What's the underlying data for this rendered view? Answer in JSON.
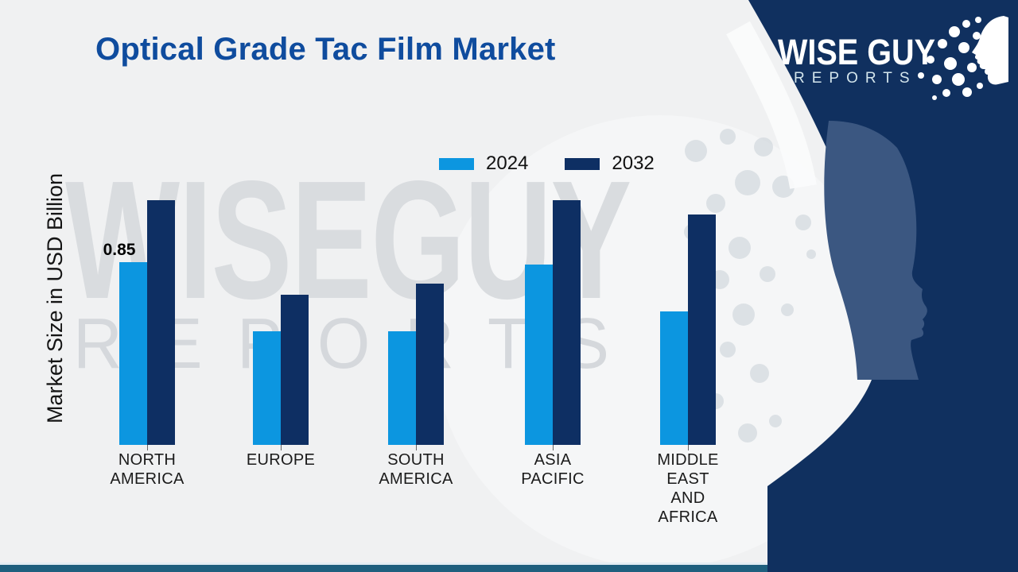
{
  "header": {
    "title": "Optical Grade Tac Film Market"
  },
  "logo": {
    "line1": "WISE GUY",
    "line2": "REPORTS"
  },
  "watermark": {
    "line1": "WISEGUY",
    "line2": "REPORTS"
  },
  "chart_data": {
    "type": "bar",
    "title": "Optical Grade Tac Film Market",
    "xlabel": "",
    "ylabel": "Market Size in USD Billion",
    "legend_position": "top",
    "grid": false,
    "ylim": [
      0,
      1.25
    ],
    "categories": [
      "NORTH AMERICA",
      "EUROPE",
      "SOUTH AMERICA",
      "ASIA PACIFIC",
      "MIDDLE EAST AND AFRICA"
    ],
    "category_lines": [
      [
        "NORTH",
        "AMERICA"
      ],
      [
        "EUROPE"
      ],
      [
        "SOUTH",
        "AMERICA"
      ],
      [
        "ASIA",
        "PACIFIC"
      ],
      [
        "MIDDLE",
        "EAST",
        "AND",
        "AFRICA"
      ]
    ],
    "series": [
      {
        "name": "2024",
        "color": "#0c96e0",
        "values": [
          0.85,
          0.53,
          0.53,
          0.84,
          0.62
        ]
      },
      {
        "name": "2032",
        "color": "#0e2f63",
        "values": [
          1.14,
          0.7,
          0.75,
          1.14,
          1.07
        ]
      }
    ],
    "annotations": [
      {
        "series": "2024",
        "category_index": 0,
        "text": "0.85"
      }
    ]
  },
  "colors": {
    "background": "#f0f1f2",
    "title": "#0f4c9e",
    "bar_2024": "#0c96e0",
    "bar_2032": "#0e2f63",
    "corner_navy": "#10305f",
    "face_silhouette": "#3b5781",
    "bottom_strip_teal": "#1e5f7e",
    "watermark_gray": "#d9dcdf"
  }
}
